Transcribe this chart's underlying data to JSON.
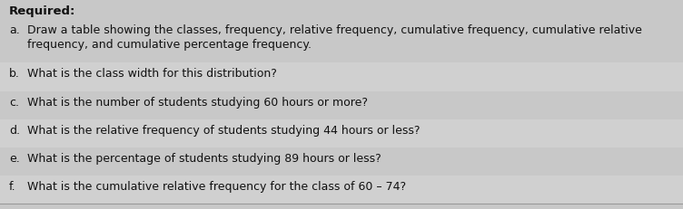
{
  "title": "Required:",
  "bg_color": "#c8c8c8",
  "row_a_color": "#c0c0c0",
  "row_light_color": "#cbcbcb",
  "row_dark_color": "#c4c4c4",
  "text_color": "#111111",
  "title_font_size": 9.5,
  "body_font_size": 9.0,
  "fig_width": 7.52,
  "fig_height": 2.32,
  "dpi": 100,
  "lines": [
    {
      "label": "a.",
      "text": "Draw a table showing the classes, frequency, relative frequency, cumulative frequency, cumulative relative\nfrequency, and cumulative percentage frequency."
    },
    {
      "label": "b.",
      "text": "What is the class width for this distribution?"
    },
    {
      "label": "c.",
      "text": "What is the number of students studying 60 hours or more?"
    },
    {
      "label": "d.",
      "text": "What is the relative frequency of students studying 44 hours or less?"
    },
    {
      "label": "e.",
      "text": "What is the percentage of students studying 89 hours or less?"
    },
    {
      "label": "f.",
      "text": "What is the cumulative relative frequency for the class of 60 – 74?"
    }
  ]
}
